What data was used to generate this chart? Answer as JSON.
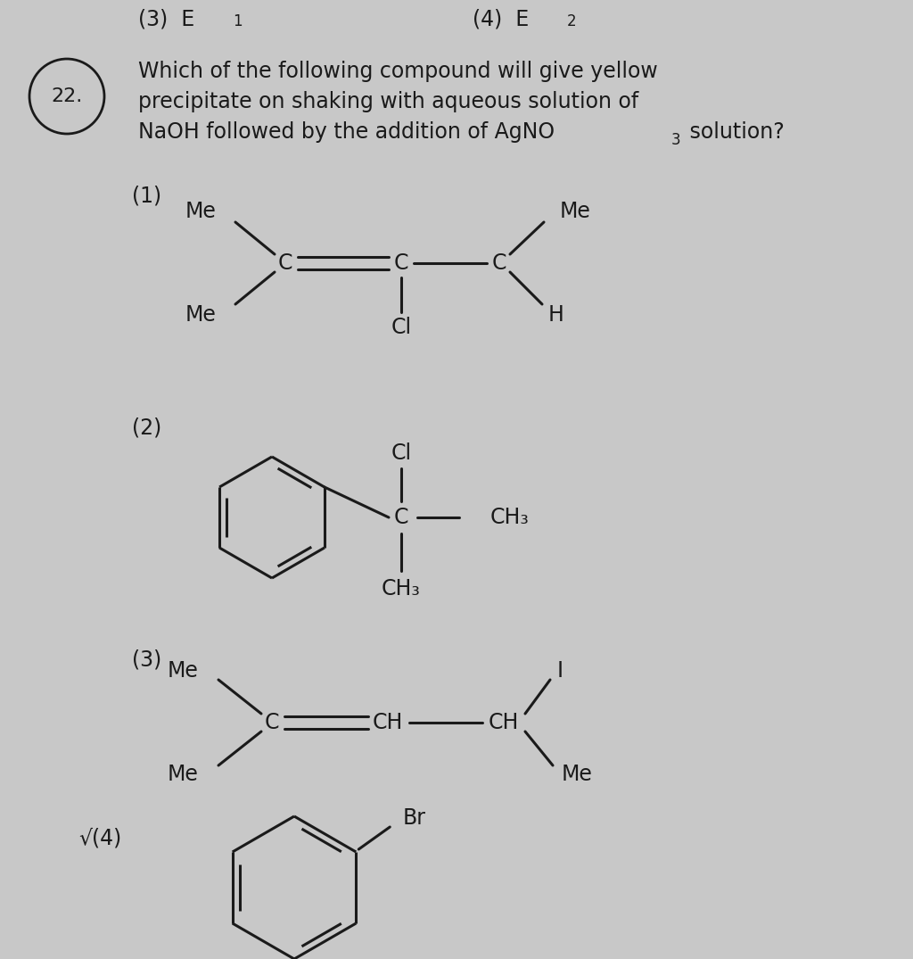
{
  "bg_color": "#c8c8c8",
  "text_color": "#1a1a1a",
  "bond_lw": 2.2,
  "font_size": 17,
  "sub_font_size": 12,
  "header_left": "(3)  E",
  "header_left_sub": "1",
  "header_right": "(4)  E",
  "header_right_sub": "2",
  "q_num": "22.",
  "q_line1": "Which of the following compound will give yellow",
  "q_line2": "precipitate on shaking with aqueous solution of",
  "q_line3_a": "NaOH followed by the addition of AgNO",
  "q_line3_sub": "3",
  "q_line3_b": " solution?",
  "opt1": "(1)",
  "opt2": "(2)",
  "opt3": "(3)",
  "opt4_tick": "√(4)"
}
